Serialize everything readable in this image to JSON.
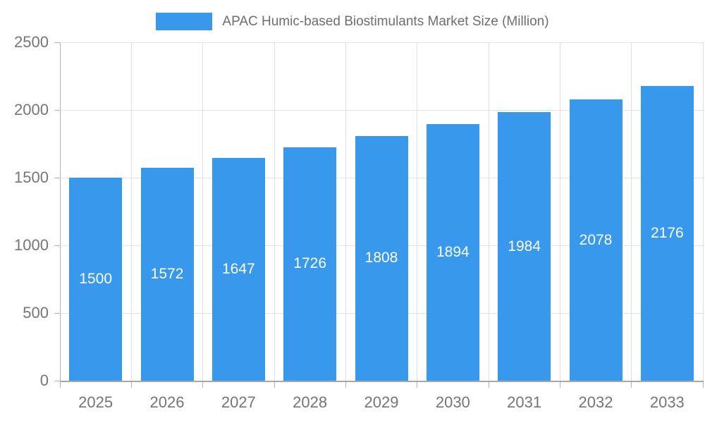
{
  "chart_data": {
    "type": "bar",
    "title": "APAC Humic-based Biostimulants Market Size (Million)",
    "categories": [
      "2025",
      "2026",
      "2027",
      "2028",
      "2029",
      "2030",
      "2031",
      "2032",
      "2033"
    ],
    "values": [
      1500,
      1572,
      1647,
      1726,
      1808,
      1894,
      1984,
      2078,
      2176
    ],
    "xlabel": "",
    "ylabel": "",
    "ylim": [
      0,
      2500
    ],
    "yticks": [
      0,
      500,
      1000,
      1500,
      2000,
      2500
    ],
    "grid": true,
    "legend_position": "top",
    "bar_color": "#3898EC",
    "value_label_color": "#FFFFFF",
    "axis_text_color": "#757575",
    "value_labels_shown": true
  }
}
